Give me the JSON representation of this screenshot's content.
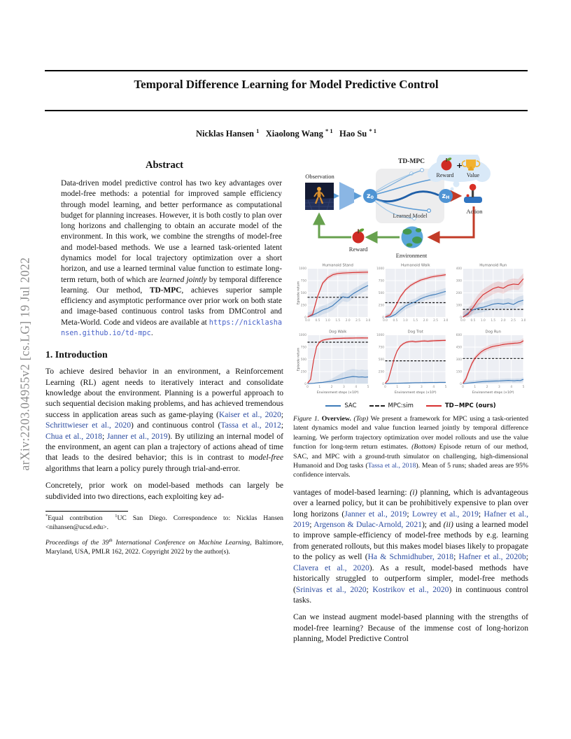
{
  "sidebar": {
    "arxiv_label": "arXiv:2203.04955v2  [cs.LG]  19 Jul 2022"
  },
  "header": {
    "title": "Temporal Difference Learning for Model Predictive Control",
    "authors": [
      {
        "t": "Nicklas Hansen "
      },
      {
        "t": "1",
        "c": "sup"
      },
      {
        "t": "   Xiaolong Wang "
      },
      {
        "t": "* 1",
        "c": "sup"
      },
      {
        "t": "   Hao Su "
      },
      {
        "t": "* 1",
        "c": "sup"
      }
    ]
  },
  "abstract": {
    "heading": "Abstract",
    "body": [
      {
        "t": "Data-driven model predictive control has two key advantages over model-free methods: a potential for improved sample efficiency through model learning, and better performance as computational budget for planning increases. However, it is both costly to plan over long horizons and challenging to obtain an accurate model of the environment. In this work, we combine the strengths of model-free and model-based methods. We use a learned task-oriented latent dynamics model for local trajectory optimization over a short horizon, and use a learned terminal value function to estimate long-term return, both of which are "
      },
      {
        "t": "learned jointly",
        "c": "i"
      },
      {
        "t": " by temporal difference learning. Our method, "
      },
      {
        "t": "TD-MPC",
        "c": "b"
      },
      {
        "t": ", achieves superior sample efficiency and asymptotic performance over prior work on both state and image-based continuous control tasks from DMControl and Meta-World. Code and videos are available at "
      },
      {
        "t": "https://nicklashansen.github.io/td-mpc",
        "c": "mono"
      },
      {
        "t": "."
      }
    ]
  },
  "intro": {
    "heading": "1. Introduction",
    "p1": [
      {
        "t": "To achieve desired behavior in an environment, a Reinforcement Learning (RL) agent needs to iteratively interact and consolidate knowledge about the environment. Planning is a powerful approach to such sequential decision making problems, and has achieved tremendous success in application areas such as game-playing ("
      },
      {
        "t": "Kaiser et al., 2020",
        "c": "cite"
      },
      {
        "t": "; "
      },
      {
        "t": "Schrittwieser et al., 2020",
        "c": "cite"
      },
      {
        "t": ") and continuous control ("
      },
      {
        "t": "Tassa et al., 2012",
        "c": "cite"
      },
      {
        "t": "; "
      },
      {
        "t": "Chua et al., 2018",
        "c": "cite"
      },
      {
        "t": "; "
      },
      {
        "t": "Janner et al., 2019",
        "c": "cite"
      },
      {
        "t": "). By utilizing an internal model of the environment, an agent can plan a trajectory of actions ahead of time that leads to the desired behavior; this is in contrast to "
      },
      {
        "t": "model-free",
        "c": "i"
      },
      {
        "t": " algorithms that learn a policy purely through trial-and-error."
      }
    ],
    "p2": [
      {
        "t": "Concretely, prior work on model-based methods can largely be subdivided into two directions, each exploiting key ad-"
      }
    ]
  },
  "footnote": {
    "text": [
      {
        "t": "*",
        "c": "sup"
      },
      {
        "t": "Equal contribution  "
      },
      {
        "t": "1",
        "c": "sup"
      },
      {
        "t": "UC San Diego. Correspondence to: Nicklas Hansen <nihansen@ucsd.edu>."
      }
    ],
    "proceedings": [
      {
        "t": "Proceedings of the 39",
        "c": "i"
      },
      {
        "t": "th",
        "c": "isup"
      },
      {
        "t": " International Conference on Machine Learning",
        "c": "i"
      },
      {
        "t": ", Baltimore, Maryland, USA, PMLR 162, 2022. Copyright 2022 by the author(s)."
      }
    ]
  },
  "figure": {
    "diagram": {
      "td_mpc": "TD-MPC",
      "observation": "Observation",
      "learned_model": "Learned Model",
      "reward_top": "Reward",
      "value": "Value",
      "action": "Action",
      "environment": "Environment",
      "reward_bottom": "Reward",
      "z0_main": "z",
      "z0_sub": "0",
      "zh_main": "z",
      "zh_sub": "H"
    },
    "legend": [
      {
        "label": "SAC",
        "color": "#3d7ab8",
        "dash": false,
        "bold": false
      },
      {
        "label": "MPC:sim",
        "color": "#222222",
        "dash": true,
        "bold": false
      },
      {
        "label": "TD−MPC (ours)",
        "color": "#d62f2f",
        "dash": false,
        "bold": true
      }
    ],
    "caption": [
      {
        "t": "Figure 1.",
        "c": "i"
      },
      {
        "t": " "
      },
      {
        "t": "Overview.",
        "c": "b"
      },
      {
        "t": " "
      },
      {
        "t": "(Top)",
        "c": "i"
      },
      {
        "t": " We present a framework for MPC using a task-oriented latent dynamics model and value function learned jointly by temporal difference learning. We perform trajectory optimization over model rollouts and use the value function for long-term return estimates. "
      },
      {
        "t": "(Bottom)",
        "c": "i"
      },
      {
        "t": " Episode return of our method, SAC, and MPC with a ground-truth simulator on challenging, high-dimensional Humanoid and Dog tasks ("
      },
      {
        "t": "Tassa et al., 2018",
        "c": "cite"
      },
      {
        "t": "). Mean of 5 runs; shaded areas are 95% confidence intervals."
      }
    ]
  },
  "chart_data": [
    {
      "type": "line",
      "title": "Humanoid Stand",
      "ylabel": "Episode return",
      "xlabel": "",
      "xlim": [
        0,
        3
      ],
      "ylim": [
        0,
        1000
      ],
      "xticks": [
        "0.0",
        "0.5",
        "1.0",
        "1.5",
        "2.0",
        "2.5",
        "3.0"
      ],
      "yticks": [
        0,
        250,
        500,
        750,
        1000
      ],
      "dashed": 410,
      "x": [
        0,
        0.25,
        0.5,
        0.75,
        1,
        1.25,
        1.5,
        1.75,
        2,
        2.25,
        2.5,
        2.75,
        3
      ],
      "series": [
        {
          "name": "SAC",
          "color": "#3d7ab8",
          "band": 90,
          "y": [
            5,
            45,
            95,
            150,
            185,
            240,
            330,
            420,
            400,
            480,
            540,
            600,
            650
          ]
        },
        {
          "name": "TD-MPC (ours)",
          "color": "#d62f2f",
          "band": 40,
          "y": [
            5,
            60,
            430,
            700,
            810,
            870,
            895,
            905,
            910,
            915,
            918,
            920,
            922
          ]
        }
      ]
    },
    {
      "type": "line",
      "title": "Humanoid Walk",
      "ylabel": "",
      "xlabel": "",
      "xlim": [
        0,
        3
      ],
      "ylim": [
        0,
        1000
      ],
      "xticks": [
        "0.0",
        "0.5",
        "1.0",
        "1.5",
        "2.0",
        "2.5",
        "3.0"
      ],
      "yticks": [
        0,
        250,
        500,
        750,
        1000
      ],
      "dashed": 300,
      "x": [
        0,
        0.25,
        0.5,
        0.75,
        1,
        1.25,
        1.5,
        1.75,
        2,
        2.25,
        2.5,
        2.75,
        3
      ],
      "series": [
        {
          "name": "SAC",
          "color": "#3d7ab8",
          "band": 70,
          "y": [
            2,
            10,
            60,
            150,
            230,
            280,
            320,
            380,
            420,
            450,
            470,
            500,
            530
          ]
        },
        {
          "name": "TD-MPC (ours)",
          "color": "#d62f2f",
          "band": 35,
          "y": [
            5,
            50,
            220,
            420,
            560,
            650,
            710,
            760,
            790,
            820,
            840,
            855,
            870
          ]
        }
      ]
    },
    {
      "type": "line",
      "title": "Humanoid Run",
      "ylabel": "",
      "xlabel": "",
      "xlim": [
        0,
        3
      ],
      "ylim": [
        0,
        400
      ],
      "xticks": [
        "0.0",
        "0.5",
        "1.0",
        "1.5",
        "2.0",
        "2.5",
        "3.0"
      ],
      "yticks": [
        0,
        100,
        200,
        300,
        400
      ],
      "dashed": 65,
      "x": [
        0,
        0.25,
        0.5,
        0.75,
        1,
        1.25,
        1.5,
        1.75,
        2,
        2.25,
        2.5,
        2.75,
        3
      ],
      "series": [
        {
          "name": "SAC",
          "color": "#3d7ab8",
          "band": 40,
          "y": [
            2,
            35,
            62,
            75,
            82,
            95,
            108,
            114,
            108,
            117,
            105,
            128,
            140
          ]
        },
        {
          "name": "TD-MPC (ours)",
          "color": "#d62f2f",
          "band": 45,
          "y": [
            2,
            25,
            80,
            140,
            185,
            210,
            235,
            248,
            238,
            262,
            272,
            268,
            315
          ]
        }
      ]
    },
    {
      "type": "line",
      "title": "Dog Walk",
      "ylabel": "Episode return",
      "xlabel": "Environment steps (×10⁶)",
      "xlim": [
        0,
        5
      ],
      "ylim": [
        0,
        1000
      ],
      "xticks": [
        "0",
        "1",
        "2",
        "3",
        "4",
        "5"
      ],
      "yticks": [
        0,
        250,
        500,
        750,
        1000
      ],
      "dashed": 850,
      "x": [
        0,
        0.25,
        0.5,
        0.75,
        1,
        1.25,
        1.5,
        1.75,
        2,
        2.25,
        2.5,
        2.75,
        3,
        3.25,
        3.5,
        3.75,
        4,
        4.25,
        4.5,
        4.75,
        5
      ],
      "series": [
        {
          "name": "SAC",
          "color": "#3d7ab8",
          "band": [
            5,
            6,
            8,
            10,
            14,
            18,
            25,
            35,
            50,
            70,
            90,
            110,
            125,
            140,
            150,
            155,
            150,
            145,
            150,
            145,
            150
          ],
          "y": [
            5,
            8,
            12,
            18,
            25,
            30,
            38,
            45,
            55,
            70,
            85,
            100,
            115,
            130,
            140,
            150,
            145,
            138,
            142,
            135,
            140
          ]
        },
        {
          "name": "TD-MPC (ours)",
          "color": "#d62f2f",
          "band": 25,
          "y": [
            15,
            90,
            480,
            760,
            855,
            890,
            905,
            915,
            920,
            925,
            928,
            930,
            932,
            933,
            934,
            935,
            936,
            937,
            938,
            937,
            936
          ]
        }
      ]
    },
    {
      "type": "line",
      "title": "Dog Trot",
      "ylabel": "",
      "xlabel": "Environment steps (×10⁶)",
      "xlim": [
        0,
        5
      ],
      "ylim": [
        0,
        1000
      ],
      "xticks": [
        "0",
        "1",
        "2",
        "3",
        "4",
        "5"
      ],
      "yticks": [
        0,
        250,
        500,
        750,
        1000
      ],
      "dashed": 470,
      "x": [
        0,
        0.25,
        0.5,
        0.75,
        1,
        1.25,
        1.5,
        1.75,
        2,
        2.25,
        2.5,
        2.75,
        3,
        3.25,
        3.5,
        3.75,
        4,
        4.25,
        4.5,
        4.75,
        5
      ],
      "series": [
        {
          "name": "SAC",
          "color": "#3d7ab8",
          "band": 15,
          "y": [
            3,
            5,
            8,
            10,
            12,
            14,
            15,
            16,
            18,
            20,
            22,
            23,
            24,
            25,
            26,
            27,
            28,
            28,
            29,
            30,
            30
          ]
        },
        {
          "name": "TD-MPC (ours)",
          "color": "#d62f2f",
          "band": 25,
          "y": [
            10,
            80,
            300,
            520,
            680,
            770,
            820,
            850,
            862,
            868,
            858,
            865,
            872,
            876,
            870,
            875,
            880,
            882,
            884,
            886,
            888
          ]
        }
      ]
    },
    {
      "type": "line",
      "title": "Dog Run",
      "ylabel": "",
      "xlabel": "Environment steps (×10⁶)",
      "xlim": [
        0,
        5
      ],
      "ylim": [
        0,
        600
      ],
      "xticks": [
        "0",
        "1",
        "2",
        "3",
        "4",
        "5"
      ],
      "yticks": [
        0,
        150,
        300,
        450,
        600
      ],
      "dashed": 310,
      "x": [
        0,
        0.25,
        0.5,
        0.75,
        1,
        1.25,
        1.5,
        1.75,
        2,
        2.25,
        2.5,
        2.75,
        3,
        3.25,
        3.5,
        3.75,
        4,
        4.25,
        4.5,
        4.75,
        5
      ],
      "series": [
        {
          "name": "SAC",
          "color": "#3d7ab8",
          "band": 25,
          "y": [
            3,
            6,
            10,
            14,
            18,
            22,
            25,
            28,
            30,
            32,
            34,
            35,
            36,
            38,
            40,
            42,
            40,
            38,
            42,
            40,
            55
          ]
        },
        {
          "name": "TD-MPC (ours)",
          "color": "#d62f2f",
          "band": 30,
          "y": [
            5,
            60,
            160,
            250,
            315,
            355,
            390,
            415,
            432,
            448,
            458,
            466,
            472,
            480,
            486,
            490,
            494,
            498,
            500,
            505,
            528
          ]
        }
      ]
    }
  ],
  "right": {
    "p1": [
      {
        "t": "vantages of model-based learning: "
      },
      {
        "t": "(i)",
        "c": "i"
      },
      {
        "t": " planning, which is advantageous over a learned policy, but it can be prohibitively expensive to plan over long horizons ("
      },
      {
        "t": "Janner et al., 2019",
        "c": "cite"
      },
      {
        "t": "; "
      },
      {
        "t": "Lowrey et al., 2019",
        "c": "cite"
      },
      {
        "t": "; "
      },
      {
        "t": "Hafner et al., 2019",
        "c": "cite"
      },
      {
        "t": "; "
      },
      {
        "t": "Argenson & Dulac-Arnold, 2021",
        "c": "cite"
      },
      {
        "t": "); and "
      },
      {
        "t": "(ii)",
        "c": "i"
      },
      {
        "t": " using a learned model to improve sample-efficiency of model-free methods by e.g. learning from generated rollouts, but this makes model biases likely to propagate to the policy as well ("
      },
      {
        "t": "Ha & Schmidhuber, 2018",
        "c": "cite"
      },
      {
        "t": "; "
      },
      {
        "t": "Hafner et al., 2020b",
        "c": "cite"
      },
      {
        "t": "; "
      },
      {
        "t": "Clavera et al., 2020",
        "c": "cite"
      },
      {
        "t": "). As a result, model-based methods have historically struggled to outperform simpler, model-free methods ("
      },
      {
        "t": "Srinivas et al., 2020",
        "c": "cite"
      },
      {
        "t": "; "
      },
      {
        "t": "Kostrikov et al., 2020",
        "c": "cite"
      },
      {
        "t": ") in continuous control tasks."
      }
    ],
    "p2": [
      {
        "t": "Can we instead augment model-based planning with the strengths of model-free learning? Because of the immense cost of long-horizon planning, Model Predictive Control"
      }
    ]
  }
}
